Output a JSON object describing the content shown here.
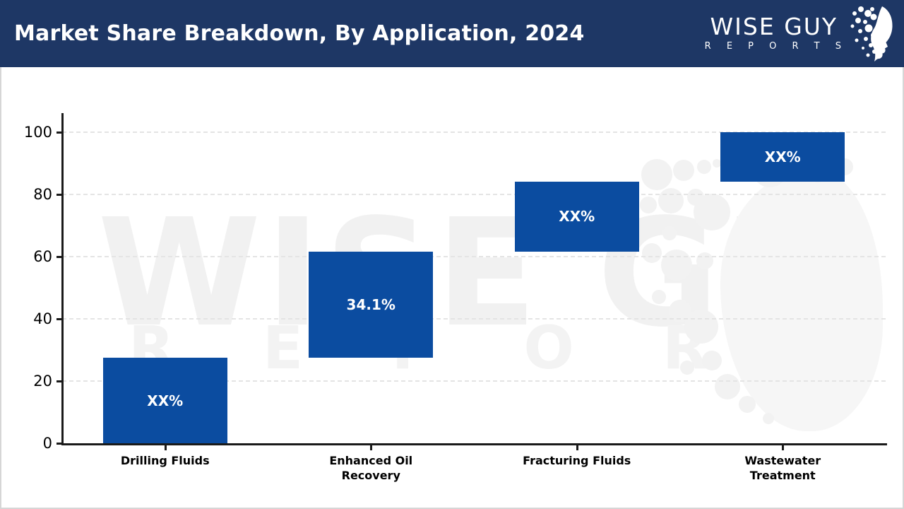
{
  "header": {
    "title": "Market Share Breakdown, By Application, 2024",
    "logo": {
      "line1": "WISE GUY",
      "line2": "R E P O R T S"
    }
  },
  "watermark": {
    "line1": "WISE GU",
    "line2": "R  E  P  O  R  T  S"
  },
  "colors": {
    "header_bg": "#1e3765",
    "bar_fill": "#0b4ca0",
    "bar_label": "#ffffff",
    "gridline": "#e4e4e4",
    "axis": "#1a1a1a",
    "watermark": "#f1f1f1"
  },
  "chart_data": {
    "type": "bar",
    "subtype": "waterfall",
    "title": "Market Share Breakdown, By Application, 2024",
    "xlabel": "",
    "ylabel": "",
    "ylim": [
      0,
      100
    ],
    "yticks": [
      0,
      20,
      40,
      60,
      80,
      100
    ],
    "grid": "horizontal-dashed",
    "legend": "none",
    "categories": [
      "Drilling Fluids",
      "Enhanced Oil\nRecovery",
      "Fracturing Fluids",
      "Wastewater\nTreatment"
    ],
    "segments": [
      {
        "category": "Drilling Fluids",
        "start": 0,
        "end": 27.5,
        "height": 27.5,
        "label": "XX%"
      },
      {
        "category": "Enhanced Oil Recovery",
        "start": 27.5,
        "end": 61.6,
        "height": 34.1,
        "label": "34.1%"
      },
      {
        "category": "Fracturing Fluids",
        "start": 61.6,
        "end": 84.1,
        "height": 22.5,
        "label": "XX%"
      },
      {
        "category": "Wastewater Treatment",
        "start": 84.1,
        "end": 100,
        "height": 15.9,
        "label": "XX%"
      }
    ]
  }
}
